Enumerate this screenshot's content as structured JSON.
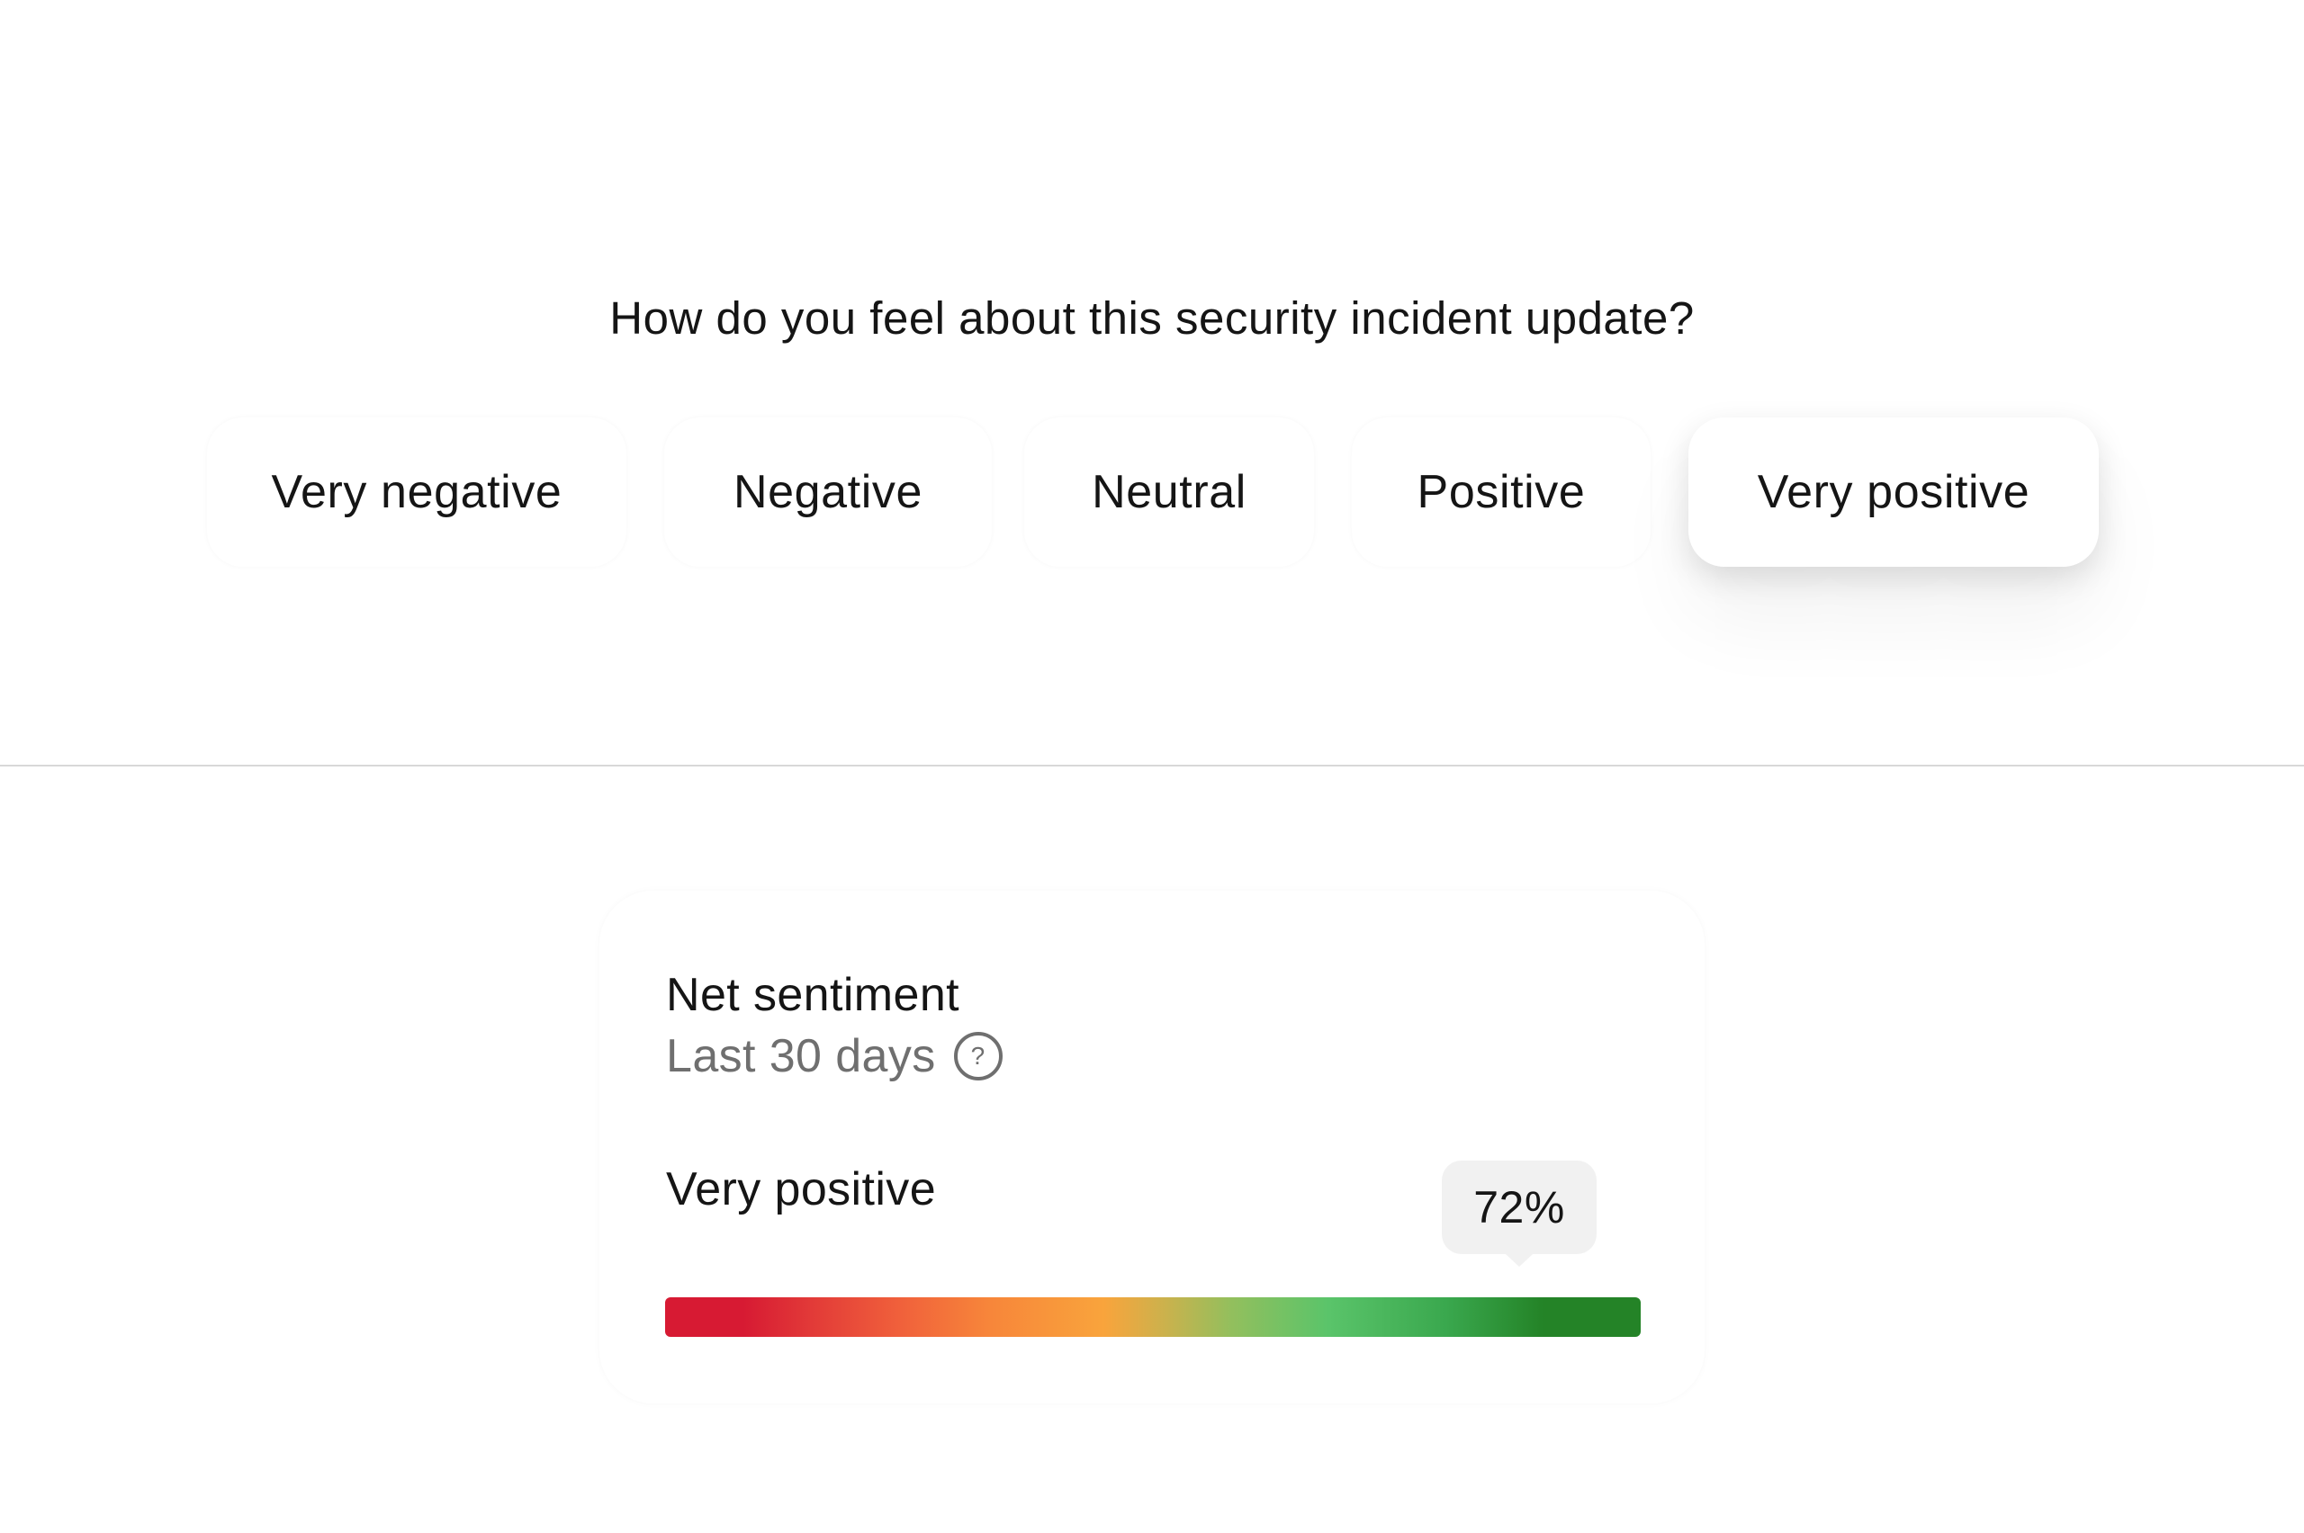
{
  "survey": {
    "question": "How do you feel about this security incident update?",
    "options": [
      {
        "label": "Very negative",
        "selected": false
      },
      {
        "label": "Negative",
        "selected": false
      },
      {
        "label": "Neutral",
        "selected": false
      },
      {
        "label": "Positive",
        "selected": false
      },
      {
        "label": "Very positive",
        "selected": true
      }
    ]
  },
  "sentiment_card": {
    "title": "Net sentiment",
    "subtitle": "Last 30 days",
    "help_icon": "question-circle-icon",
    "level_label": "Very positive",
    "value_text": "72%",
    "value": 72,
    "gradient_colors": [
      "#d71a33",
      "#f7853a",
      "#f9a43c",
      "#5ac46a",
      "#248327"
    ]
  }
}
